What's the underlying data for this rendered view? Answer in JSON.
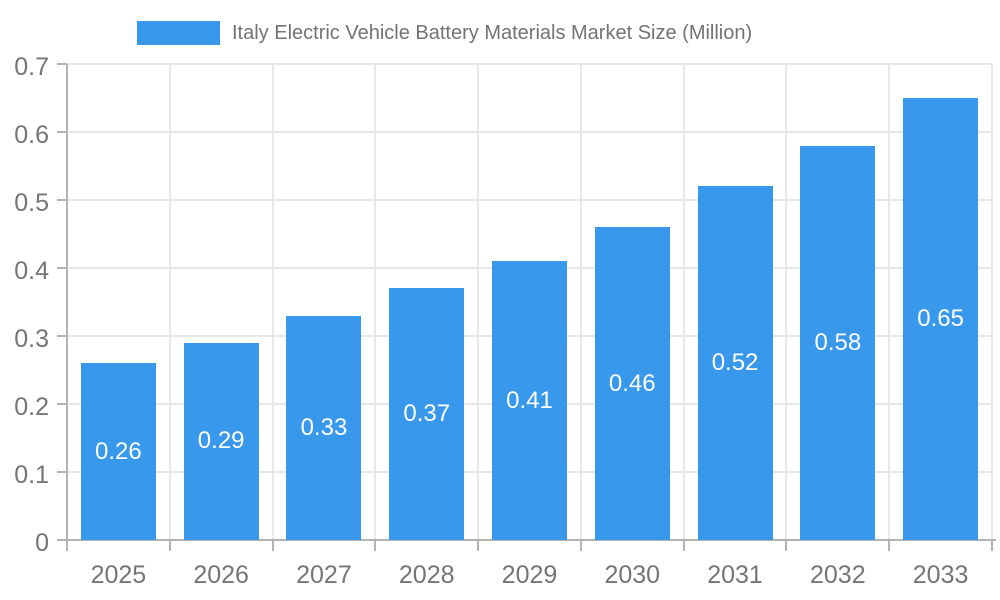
{
  "chart_data": {
    "type": "bar",
    "title": "Italy Electric Vehicle Battery Materials Market Size (Million)",
    "categories": [
      "2025",
      "2026",
      "2027",
      "2028",
      "2029",
      "2030",
      "2031",
      "2032",
      "2033"
    ],
    "values": [
      0.26,
      0.29,
      0.33,
      0.37,
      0.41,
      0.46,
      0.52,
      0.58,
      0.65
    ],
    "value_labels": [
      "0.26",
      "0.29",
      "0.33",
      "0.37",
      "0.41",
      "0.46",
      "0.52",
      "0.58",
      "0.65"
    ],
    "xlabel": "",
    "ylabel": "",
    "ylim": [
      0,
      0.7
    ],
    "yticks": [
      0,
      0.1,
      0.2,
      0.3,
      0.4,
      0.5,
      0.6,
      0.7
    ],
    "ytick_labels": [
      "0",
      "0.1",
      "0.2",
      "0.3",
      "0.4",
      "0.5",
      "0.6",
      "0.7"
    ],
    "grid": true,
    "legend_position": "top",
    "colors": {
      "bar": "#3898EC",
      "gridline": "#E8E8E8",
      "axis": "#B3B3B3",
      "tick_label": "#757575",
      "title": "#737373",
      "value_label": "#FFFFFF"
    }
  }
}
